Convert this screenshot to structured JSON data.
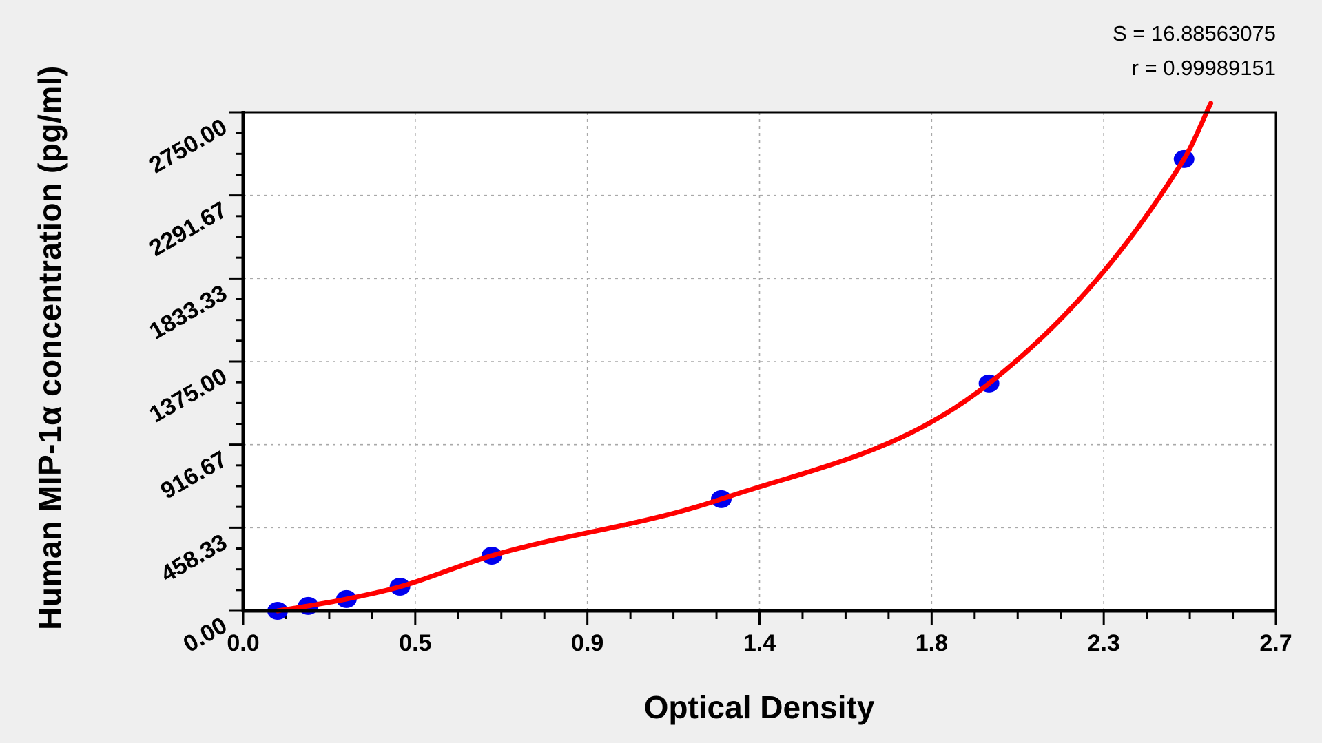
{
  "stats": {
    "s": "S = 16.88563075",
    "r": "r = 0.99989151"
  },
  "chart_data": {
    "type": "scatter",
    "title": "",
    "xlabel": "Optical Density",
    "ylabel": "Human MIP-1α concentration (pg/ml)",
    "xlim": [
      0,
      2.7
    ],
    "ylim": [
      0,
      2750
    ],
    "x_tick_labels": [
      "0.0",
      "0.5",
      "0.9",
      "1.4",
      "1.8",
      "2.3",
      "2.7"
    ],
    "y_tick_labels": [
      "0.00",
      "458.33",
      "916.67",
      "1375.00",
      "1833.33",
      "2291.67",
      "2750.00"
    ],
    "minor_ticks_per_interval": 3,
    "grid": "dashed gridlines at major ticks, horizontal and vertical",
    "legend_position": "none",
    "points": [
      {
        "od": 0.09,
        "conc": 0
      },
      {
        "od": 0.17,
        "conc": 27
      },
      {
        "od": 0.27,
        "conc": 65
      },
      {
        "od": 0.41,
        "conc": 133
      },
      {
        "od": 0.65,
        "conc": 304
      },
      {
        "od": 1.25,
        "conc": 616
      },
      {
        "od": 1.95,
        "conc": 1254
      },
      {
        "od": 2.46,
        "conc": 2492
      }
    ],
    "curve": {
      "description": "fitted standard curve through the standards, overshooting the top frame slightly",
      "anchors_od": [
        0.09,
        0.17,
        0.27,
        0.41,
        0.65,
        1.25,
        1.95,
        2.46,
        2.53
      ],
      "anchors_conc": [
        0,
        27,
        65,
        133,
        304,
        616,
        1254,
        2492,
        2800
      ]
    },
    "colors": {
      "background": "#efefef",
      "plot_background": "#ffffff",
      "axis": "#000000",
      "grid": "#a9a9a9",
      "curve": "#ff0000",
      "points": "#0000ee",
      "text": "#000000"
    }
  }
}
